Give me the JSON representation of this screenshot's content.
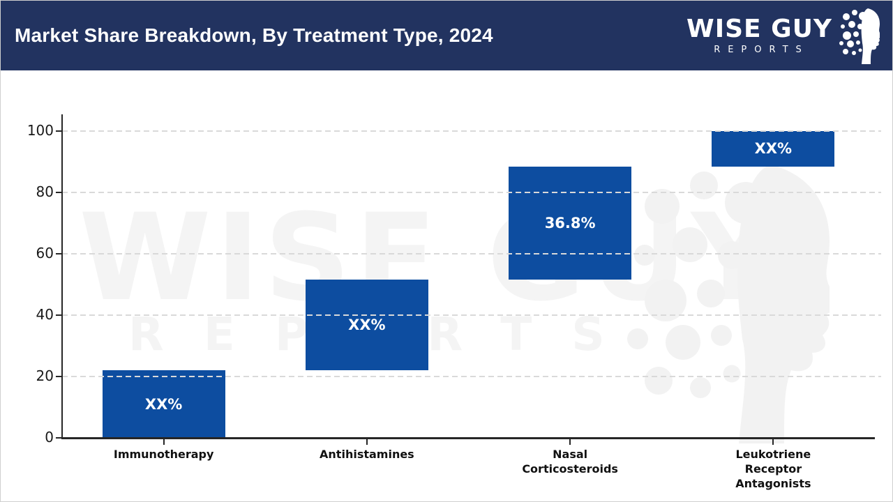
{
  "header": {
    "title": "Market Share Breakdown, By Treatment Type, 2024",
    "logo": {
      "word": "WISE GUY",
      "sub": "REPORTS"
    }
  },
  "watermark": {
    "line1": "WISE GUY",
    "line2": "REPORTS"
  },
  "chart_data": {
    "type": "bar",
    "subtype": "waterfall",
    "title": "Market Share Breakdown, By Treatment Type, 2024",
    "categories": [
      "Immunotherapy",
      "Antihistamines",
      "Nasal\nCorticosteroids",
      "Leukotriene\nReceptor\nAntagonists"
    ],
    "bars": [
      {
        "category": "Immunotherapy",
        "start": 0,
        "end": 22.0,
        "label": "XX%"
      },
      {
        "category": "Antihistamines",
        "start": 22.0,
        "end": 51.6,
        "label": "XX%"
      },
      {
        "category": "Nasal Corticosteroids",
        "start": 51.6,
        "end": 88.4,
        "label": "36.8%",
        "value": 36.8
      },
      {
        "category": "Leukotriene Receptor Antagonists",
        "start": 88.4,
        "end": 100,
        "label": "XX%"
      }
    ],
    "ylim": [
      0,
      100
    ],
    "yticks": [
      0,
      20,
      40,
      60,
      80,
      100
    ],
    "xlabel": "",
    "ylabel": "",
    "legend": "none",
    "grid": {
      "horizontal": true,
      "style": "dashed",
      "color": "#d9d9d9"
    },
    "bar_color": "#0d4da0",
    "label_color": "#ffffff",
    "header_color": "#223360"
  }
}
